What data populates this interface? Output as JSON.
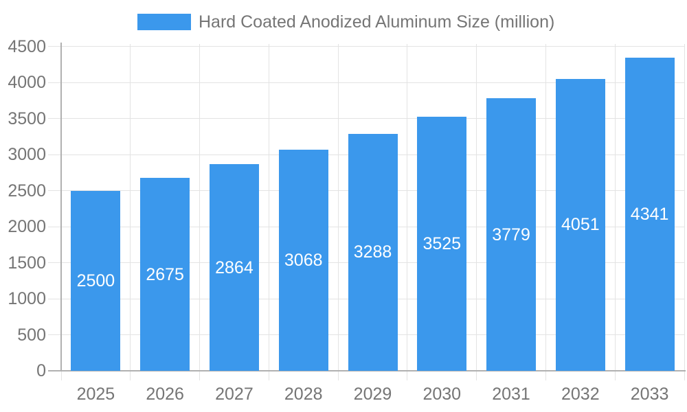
{
  "chart_data": {
    "type": "bar",
    "title": "",
    "series_name": "Hard Coated Anodized Aluminum Size (million)",
    "categories": [
      "2025",
      "2026",
      "2027",
      "2028",
      "2029",
      "2030",
      "2031",
      "2032",
      "2033"
    ],
    "values": [
      2500,
      2675,
      2864,
      3068,
      3288,
      3525,
      3779,
      4051,
      4341
    ],
    "xlabel": "",
    "ylabel": "",
    "ylim": [
      0,
      4500
    ],
    "y_tick_step": 500,
    "y_tick_labels": [
      "0",
      "500",
      "1000",
      "1500",
      "2000",
      "2500",
      "3000",
      "3500",
      "4000",
      "4500"
    ],
    "grid": true,
    "legend_position": "top",
    "value_labels": "inside-center",
    "colors": {
      "bar": "#3B98EC",
      "value_text": "#FFFFFF",
      "axis_text": "#757575",
      "grid_line": "#E3E3E3",
      "axis_line": "#B0B0B0",
      "background": "#FFFFFF"
    }
  }
}
